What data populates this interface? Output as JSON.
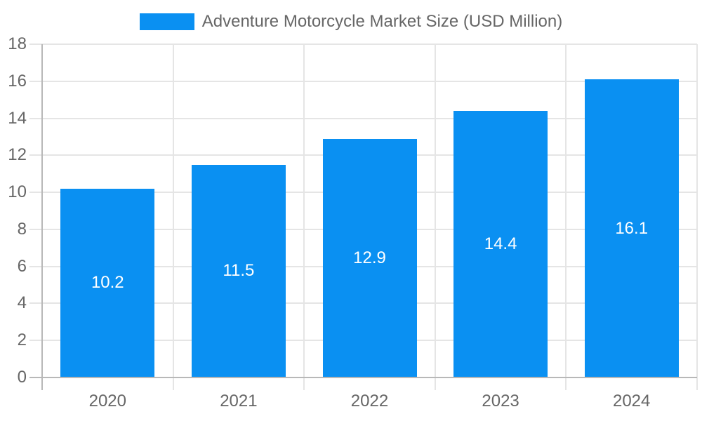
{
  "chart_data": {
    "type": "bar",
    "title": "Adventure Motorcycle Market Size (USD Million)",
    "categories": [
      "2020",
      "2021",
      "2022",
      "2023",
      "2024"
    ],
    "values": [
      10.2,
      11.5,
      12.9,
      14.4,
      16.1
    ],
    "value_labels": [
      "10.2",
      "11.5",
      "12.9",
      "14.4",
      "16.1"
    ],
    "xlabel": "",
    "ylabel": "",
    "ylim": [
      0,
      18
    ],
    "ytick_step": 2,
    "ytick_labels": [
      "0",
      "2",
      "4",
      "6",
      "8",
      "10",
      "12",
      "14",
      "16",
      "18"
    ],
    "grid": true,
    "legend_position": "top",
    "legend_entries": [
      "Adventure Motorcycle Market Size (USD Million)"
    ],
    "colors": {
      "bar": "#0a90f2",
      "grid": "#e5e5e5",
      "axis": "#b8b8b8",
      "text": "#666666",
      "value_label": "#ffffff",
      "background": "#ffffff"
    }
  }
}
